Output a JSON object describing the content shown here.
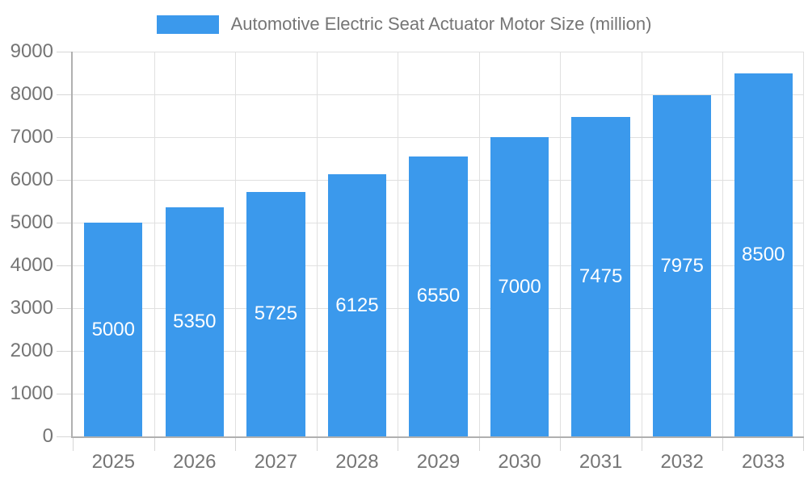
{
  "legend": {
    "position": "top"
  },
  "chart_data": {
    "type": "bar",
    "title": "Automotive Electric Seat Actuator Motor Size (million)",
    "xlabel": "",
    "ylabel": "",
    "categories": [
      "2025",
      "2026",
      "2027",
      "2028",
      "2029",
      "2030",
      "2031",
      "2032",
      "2033"
    ],
    "values": [
      5000,
      5350,
      5725,
      6125,
      6550,
      7000,
      7475,
      7975,
      8500
    ],
    "value_labels": [
      "5000",
      "5350",
      "5725",
      "6125",
      "6550",
      "7000",
      "7475",
      "7975",
      "8500"
    ],
    "ylim": [
      0,
      9000
    ],
    "yticks": [
      0,
      1000,
      2000,
      3000,
      4000,
      5000,
      6000,
      7000,
      8000,
      9000
    ],
    "grid": true,
    "legend_position": "top",
    "colors": {
      "bar": "#3B99EC",
      "grid": "#E0E0E0",
      "axis": "#B0B0B0",
      "tick": "#D6D6D6",
      "axis_text": "#757575",
      "bar_label_text": "#FFFFFF",
      "background": "#FFFFFF"
    }
  }
}
